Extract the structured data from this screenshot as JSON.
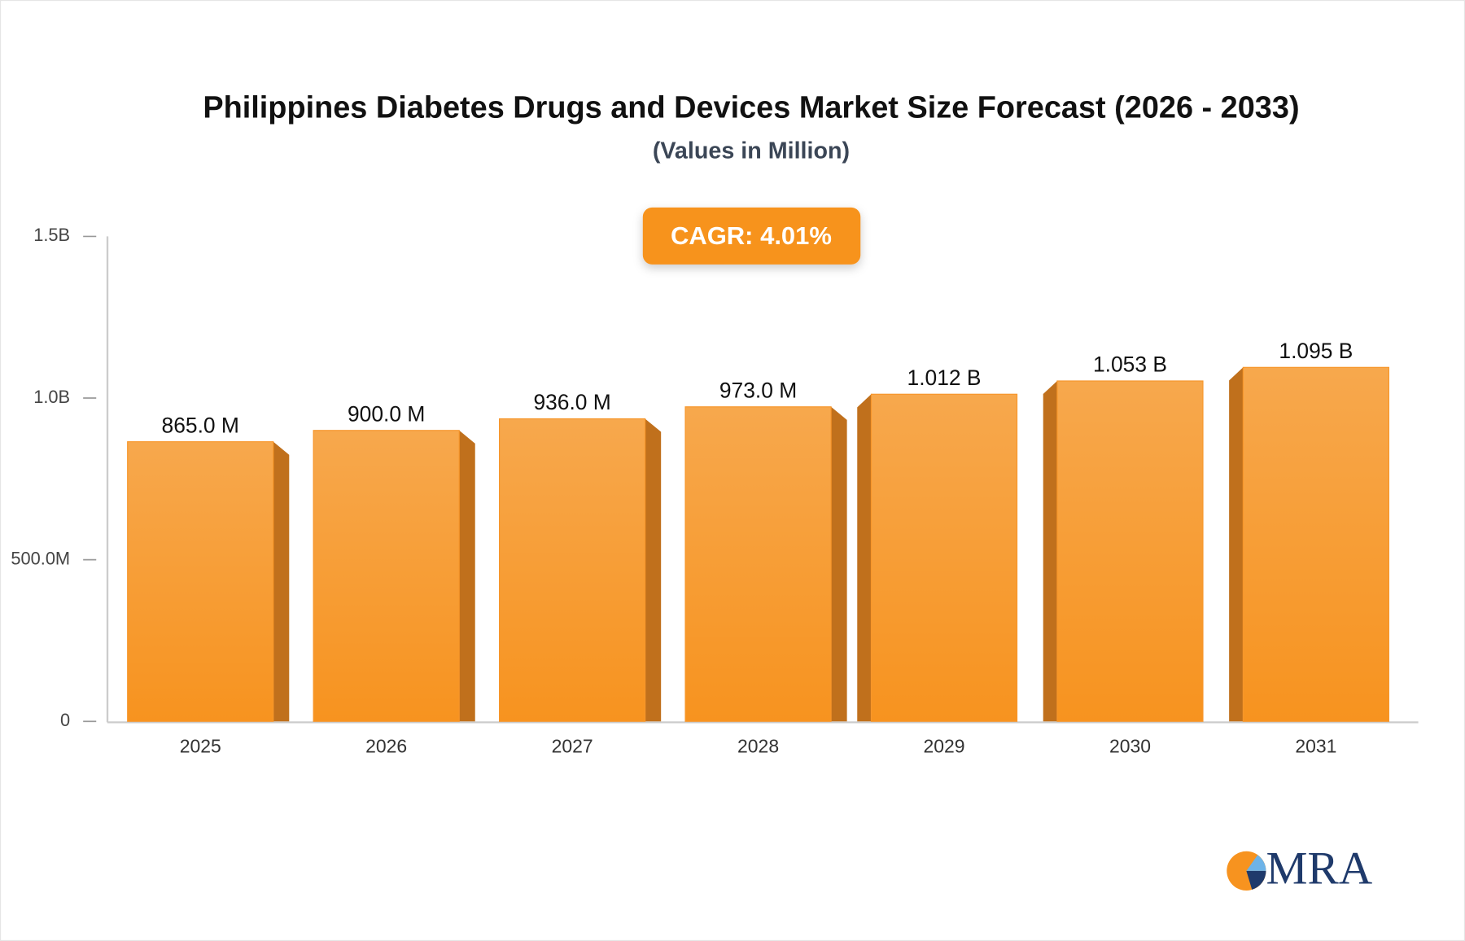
{
  "chart_data": {
    "type": "bar",
    "title": "Philippines Diabetes Drugs and Devices Market Size Forecast (2026 - 2033)",
    "subtitle": "(Values in Million)",
    "annotation": "CAGR: 4.01%",
    "categories": [
      "2025",
      "2026",
      "2027",
      "2028",
      "2029",
      "2030",
      "2031"
    ],
    "values": [
      865000000,
      900000000,
      936000000,
      973000000,
      1012000000,
      1053000000,
      1095000000
    ],
    "value_labels": [
      "865.0 M",
      "900.0 M",
      "936.0 M",
      "973.0 M",
      "1.012 B",
      "1.053 B",
      "1.095 B"
    ],
    "color": "#f7962a",
    "ylim": [
      0,
      1500000000
    ],
    "yticks": [
      0,
      {
        "value": 500000000,
        "label": "500.0M"
      },
      {
        "value": 1000000000,
        "label": "1.0B"
      },
      {
        "value": 1500000000,
        "label": "1.5B"
      }
    ]
  },
  "logo": "MRA"
}
